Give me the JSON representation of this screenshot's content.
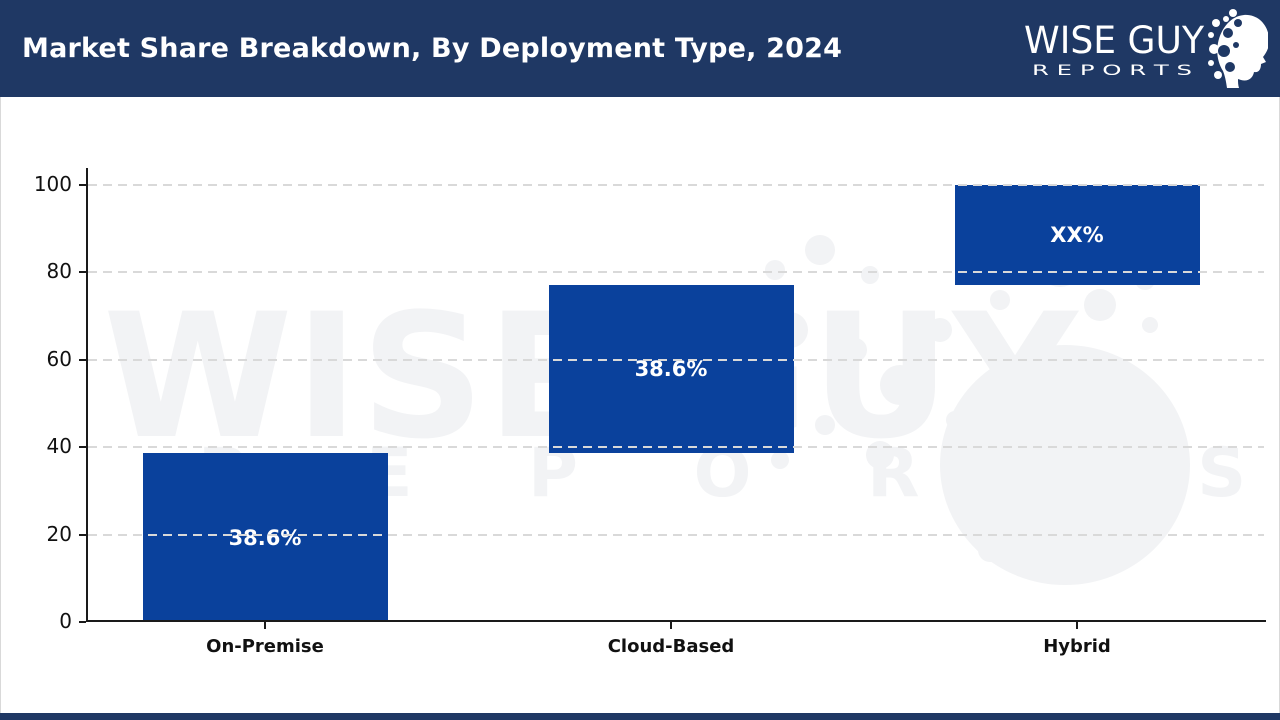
{
  "header": {
    "title": "Market Share Breakdown, By Deployment Type, 2024",
    "logo": {
      "wordmark": "WISE GUY",
      "subtext": "R E P O R T S"
    }
  },
  "watermark": {
    "wordmark": "WISE GUY",
    "subtext": "R E P O R T S"
  },
  "chart_data": {
    "type": "bar",
    "subtype": "waterfall-stacked",
    "title": "Market Share Breakdown, By Deployment Type, 2024",
    "categories": [
      "On-Premise",
      "Cloud-Based",
      "Hybrid"
    ],
    "bars": [
      {
        "category": "On-Premise",
        "start": 0,
        "end": 38.6,
        "label": "38.6%"
      },
      {
        "category": "Cloud-Based",
        "start": 38.6,
        "end": 77.2,
        "label": "38.6%"
      },
      {
        "category": "Hybrid",
        "start": 77.2,
        "end": 100,
        "label": "XX%"
      }
    ],
    "xlabel": "",
    "ylabel": "",
    "ylim": [
      0,
      105
    ],
    "yticks": [
      0,
      20,
      40,
      60,
      80,
      100
    ],
    "grid": "horizontal-dashed",
    "legend": "none",
    "colors": {
      "bar": "#0a419c",
      "bar_label": "#ffffff",
      "grid": "#d9d9d9",
      "axis": "#1a1a1a",
      "tick_label": "#111111",
      "header_bg": "#1f3864",
      "footer_bg": "#1f3864",
      "watermark": "#f2f3f5"
    }
  }
}
